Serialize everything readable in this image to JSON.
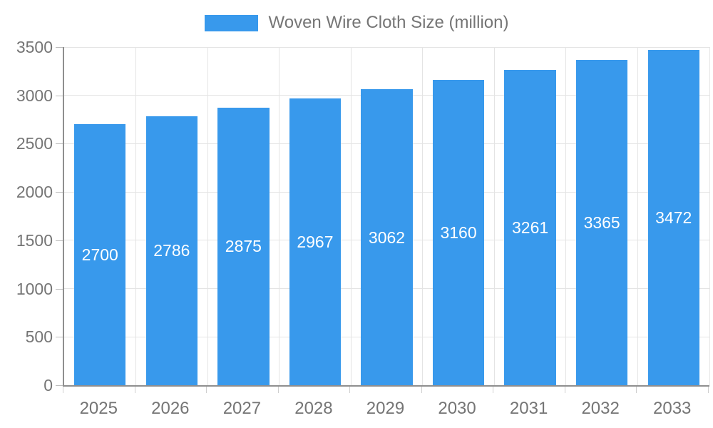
{
  "legend": {
    "label": "Woven Wire Cloth Size (million)",
    "swatch_icon": "blue-rect-swatch"
  },
  "colors": {
    "bar": "#3899ec",
    "grid": "#e4e4e4",
    "axis_line": "#8f8f8f",
    "axis_text": "#757575",
    "value_label_text": "#ffffff",
    "background": "#ffffff"
  },
  "chart_data": {
    "type": "bar",
    "title": "Woven Wire Cloth Size (million)",
    "categories": [
      "2025",
      "2026",
      "2027",
      "2028",
      "2029",
      "2030",
      "2031",
      "2032",
      "2033"
    ],
    "values": [
      2700,
      2786,
      2875,
      2967,
      3062,
      3160,
      3261,
      3365,
      3472
    ],
    "series_name": "Woven Wire Cloth Size (million)",
    "xlabel": "",
    "ylabel": "",
    "ylim": [
      0,
      3500
    ],
    "y_ticks": [
      0,
      500,
      1000,
      1500,
      2000,
      2500,
      3000,
      3500
    ],
    "grid": true,
    "legend_position": "top-center",
    "value_labels_position": "inside-center",
    "bar_color": "#3899ec"
  }
}
